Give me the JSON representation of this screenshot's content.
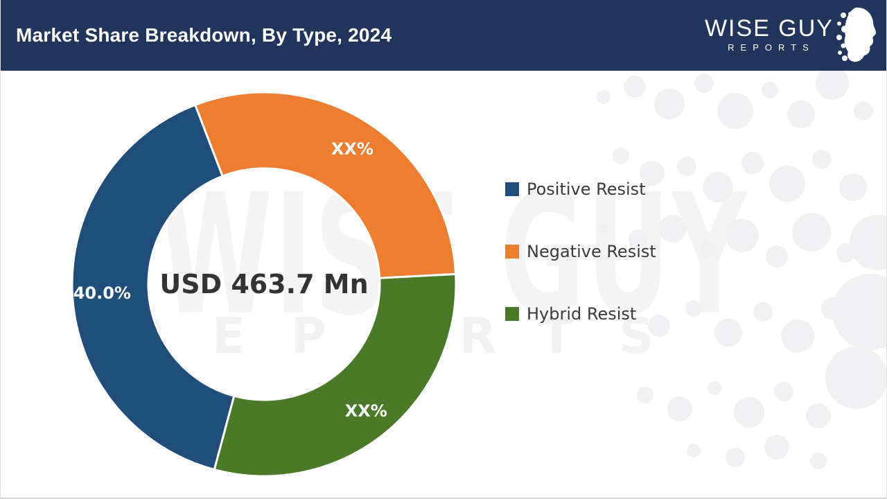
{
  "header": {
    "title": "Market Share Breakdown, By Type, 2024",
    "background_color": "#20345c",
    "logo": {
      "line1": "WISE GUY",
      "line2": "REPORTS"
    }
  },
  "chart_data": {
    "type": "pie",
    "subtype": "donut",
    "title": "Market Share Breakdown, By Type, 2024",
    "center_label": "USD 463.7 Mn",
    "start_angle_deg_clockwise_from_top": 195,
    "legend_position": "right",
    "segments": [
      {
        "label": "Positive Resist",
        "value_pct": 40.0,
        "display_label": "40.0%",
        "color": "#1f4e7a"
      },
      {
        "label": "Negative Resist",
        "value_pct": 30.0,
        "display_label": "XX%",
        "color": "#ed7d31"
      },
      {
        "label": "Hybrid Resist",
        "value_pct": 30.0,
        "display_label": "XX%",
        "color": "#4a7a28"
      }
    ]
  },
  "watermark": {
    "line1": "WISE GUY",
    "line2": "REPORTS"
  }
}
